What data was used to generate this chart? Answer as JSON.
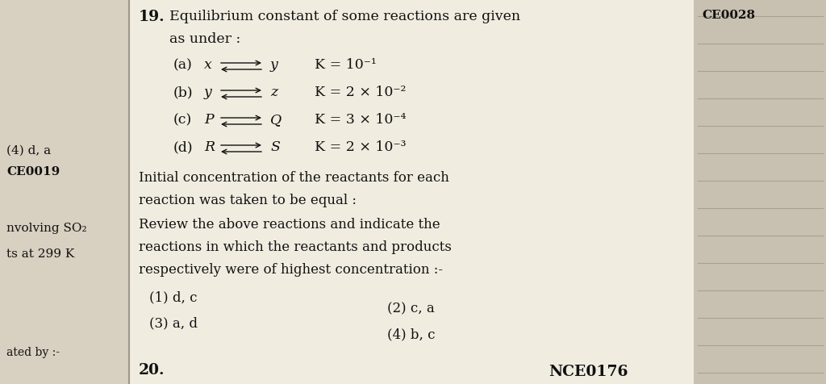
{
  "bg_left_color": "#d8d0c0",
  "bg_paper_color": "#f0ece0",
  "bg_right_color": "#c8c0b0",
  "divider_color": "#a0988a",
  "header_code": "CE0028",
  "question_number": "19.",
  "title_line1": "Equilibrium constant of some reactions are given",
  "title_line2": "as under :",
  "reactions": [
    {
      "label": "(a)",
      "lhs": "x",
      "arrow": "⇌",
      "rhs": "y",
      "K": "K = 10⁻¹"
    },
    {
      "label": "(b)",
      "lhs": "y",
      "arrow": "⇌",
      "rhs": "z",
      "K": "K = 2 × 10⁻²"
    },
    {
      "label": "(c)",
      "lhs": "P",
      "arrow": "⇌",
      "rhs": "Q",
      "K": "K = 3 × 10⁻⁴"
    },
    {
      "label": "(d)",
      "lhs": "R",
      "arrow": "⇌",
      "rhs": "S",
      "K": "K = 2 × 10⁻³"
    }
  ],
  "para1_line1": "Initial concentration of the reactants for each",
  "para1_line2": "reaction was taken to be equal :",
  "para2_line1": "Review the above reactions and indicate the",
  "para2_line2": "reactions in which the reactants and products",
  "para2_line3": "respectively were of highest concentration :-",
  "options": [
    {
      "num": "(1)",
      "text": "d, c"
    },
    {
      "num": "(2)",
      "text": "c, a"
    },
    {
      "num": "(3)",
      "text": "a, d"
    },
    {
      "num": "(4)",
      "text": "b, c"
    }
  ],
  "left_col": [
    {
      "text": "(4) d, a",
      "bold": false,
      "italic": false
    },
    {
      "text": "CE0019",
      "bold": true,
      "italic": false
    },
    {
      "text": "nvolving SO₂",
      "bold": false,
      "italic": false
    },
    {
      "text": "ts at 299 K",
      "bold": false,
      "italic": false
    }
  ],
  "bottom_left": "ated by :-",
  "next_q": "20",
  "bottom_code": "NCE0176",
  "font_color": "#111111",
  "title_fontsize": 12.5,
  "body_fontsize": 12,
  "reaction_fontsize": 12.5,
  "small_fontsize": 11
}
